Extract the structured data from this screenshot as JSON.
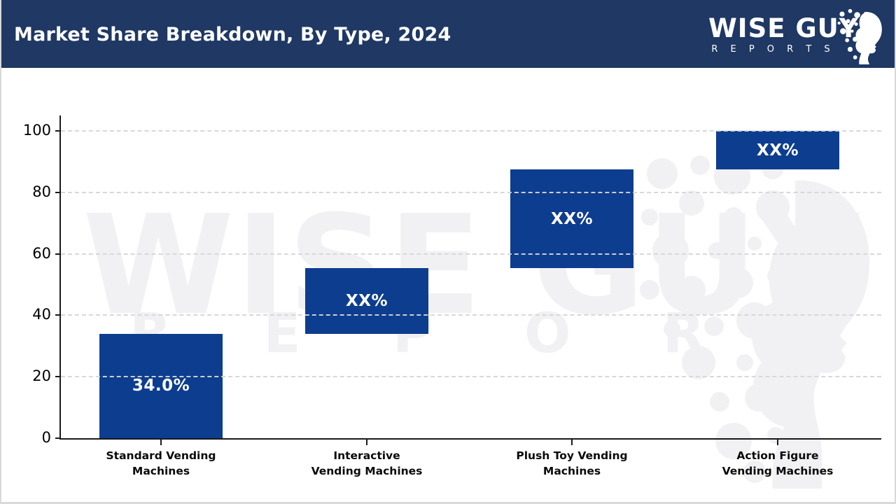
{
  "header": {
    "title": "Market Share Breakdown, By Type, 2024",
    "logo": {
      "line1": "WISE GUY",
      "line2": "R E P O R T S",
      "icon": "dotted-face-profile"
    }
  },
  "watermark": {
    "line1": "WISE GUY",
    "line2": "R E P O R T S",
    "icon": "dotted-face-profile"
  },
  "colors": {
    "header_bg": "#1f3864",
    "bar_fill": "#0d3d8f",
    "bar_label": "#ffffff",
    "grid": "#d6d6d6",
    "axis": "#1a1a1a",
    "watermark": "#f1f1f3",
    "background": "#ffffff"
  },
  "chart_data": {
    "type": "bar",
    "subtype": "waterfall",
    "title": "Market Share Breakdown, By Type, 2024",
    "xlabel": "",
    "ylabel": "",
    "ylim": [
      0,
      105
    ],
    "yticks": [
      0,
      20,
      40,
      60,
      80,
      100
    ],
    "grid": "horizontal-dashed",
    "legend": "none",
    "categories": [
      "Standard Vending Machines",
      "Interactive Vending Machines",
      "Plush Toy Vending Machines",
      "Action Figure Vending Machines"
    ],
    "categories_wrapped": [
      [
        "Standard Vending",
        "Machines"
      ],
      [
        "Interactive",
        "Vending Machines"
      ],
      [
        "Plush Toy Vending",
        "Machines"
      ],
      [
        "Action Figure",
        "Vending Machines"
      ]
    ],
    "segments": [
      {
        "category": "Standard Vending Machines",
        "label": "34.0%",
        "start": 0,
        "end": 34.0
      },
      {
        "category": "Interactive Vending Machines",
        "label": "XX%",
        "start": 34.0,
        "end": 55.4
      },
      {
        "category": "Plush Toy Vending Machines",
        "label": "XX%",
        "start": 55.4,
        "end": 87.4
      },
      {
        "category": "Action Figure Vending Machines",
        "label": "XX%",
        "start": 87.4,
        "end": 100.0
      }
    ],
    "values": [
      34.0,
      21.4,
      32.0,
      12.6
    ],
    "bar_labels": [
      "34.0%",
      "XX%",
      "XX%",
      "XX%"
    ]
  }
}
